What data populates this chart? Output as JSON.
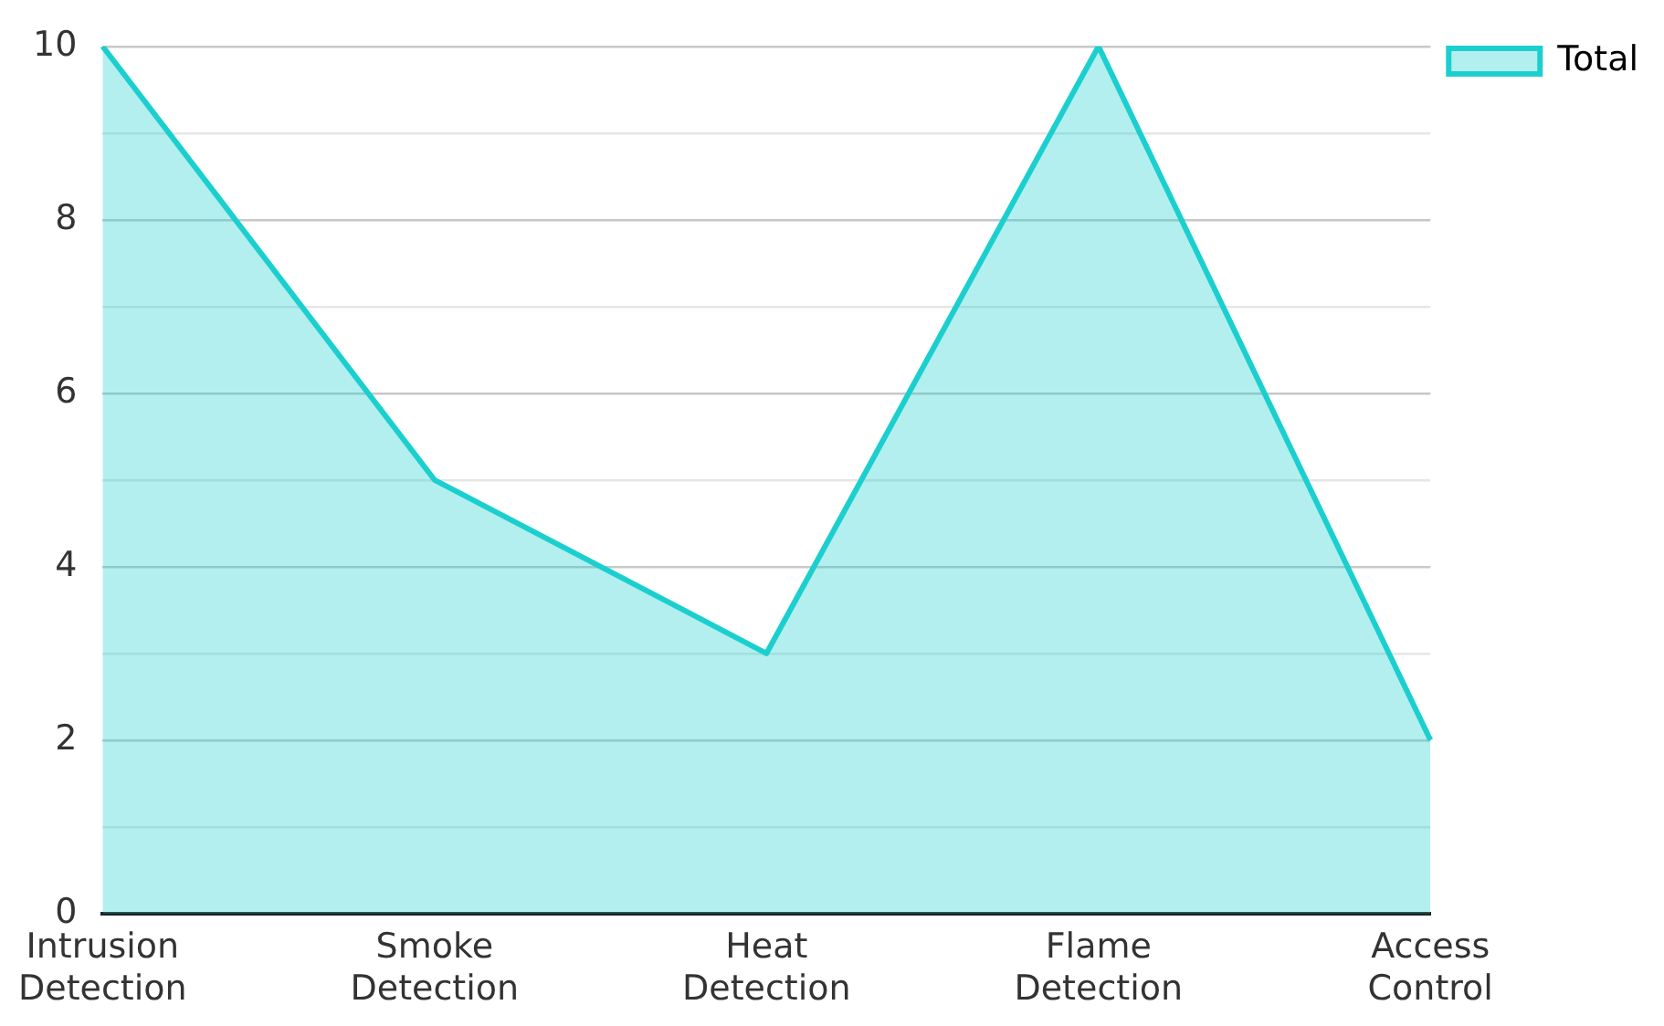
{
  "chart_data": {
    "type": "area",
    "categories": [
      "Intrusion Detection",
      "Smoke Detection",
      "Heat Detection",
      "Flame Detection",
      "Access Control"
    ],
    "series": [
      {
        "name": "Total",
        "color": "#1ccfcf",
        "values": [
          10,
          5,
          3,
          10,
          2
        ]
      }
    ],
    "ylim": [
      0,
      10
    ],
    "yticks": [
      0,
      {
        "value": 1,
        "label": null
      },
      2,
      {
        "value": 3,
        "label": null
      },
      4,
      {
        "value": 5,
        "label": null
      },
      6,
      {
        "value": 7,
        "label": null
      },
      8,
      {
        "value": 9,
        "label": null
      },
      10
    ],
    "grid": "y",
    "legend": "top right",
    "marker": "none"
  }
}
